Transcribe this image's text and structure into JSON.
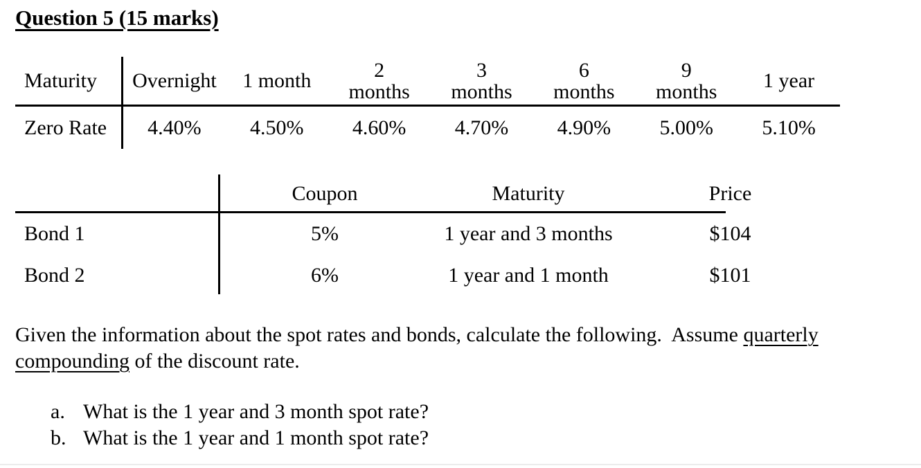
{
  "page": {
    "background": "#ffffff",
    "text_color": "#000000"
  },
  "title": "Question 5 (15 marks)",
  "rates_table": {
    "row_header_label": "Maturity",
    "rate_row_label": "Zero Rate",
    "maturities": [
      "Overnight",
      "1 month",
      "2\nmonths",
      "3\nmonths",
      "6\nmonths",
      "9\nmonths",
      "1 year"
    ],
    "zero_rates": [
      "4.40%",
      "4.50%",
      "4.60%",
      "4.70%",
      "4.90%",
      "5.00%",
      "5.10%"
    ]
  },
  "bonds_table": {
    "columns": {
      "coupon": "Coupon",
      "maturity": "Maturity",
      "price": "Price"
    },
    "rows": [
      {
        "name": "Bond 1",
        "coupon": "5%",
        "maturity": "1 year and 3 months",
        "price": "$104"
      },
      {
        "name": "Bond 2",
        "coupon": "6%",
        "maturity": "1 year and 1 month",
        "price": "$101"
      }
    ]
  },
  "instructions": {
    "text_before": "Given the information about the spot rates and bonds, calculate the following.  Assume ",
    "underlined_word_1": "quarterly",
    "underlined_word_2": "compounding",
    "text_after": " of the discount rate."
  },
  "questions": [
    {
      "marker": "a.",
      "text": "What is the 1 year and 3 month spot rate?"
    },
    {
      "marker": "b.",
      "text": "What is the 1 year and 1 month spot rate?"
    }
  ]
}
